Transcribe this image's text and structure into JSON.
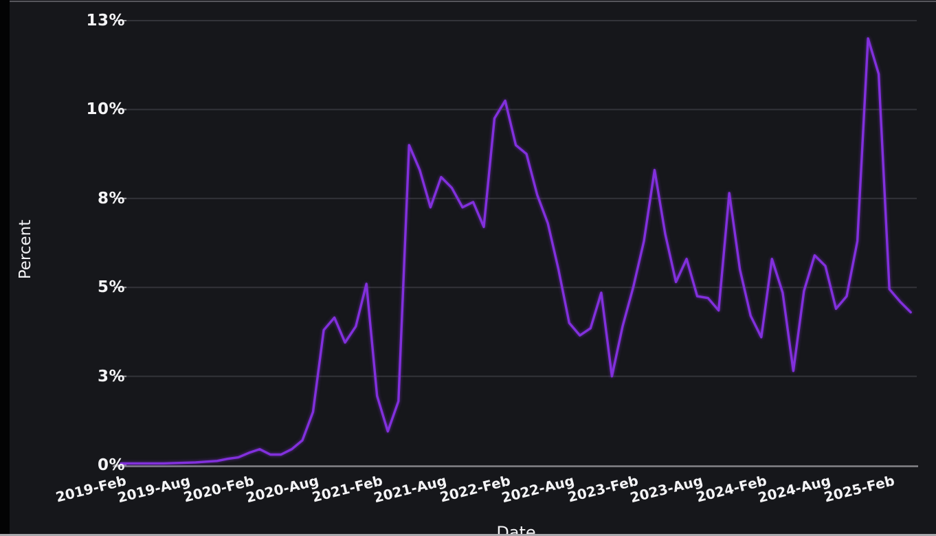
{
  "page": {
    "background": "#000000",
    "frame_background": "#16171b",
    "top_edge_color": "#56565c",
    "bottom_edge_color": "#a9a9ad"
  },
  "chart_data": {
    "type": "line",
    "title": "",
    "xlabel": "Date",
    "ylabel": "Percent",
    "x_unit": "month",
    "grid": true,
    "legend_position": "none",
    "ylim": [
      0,
      12.5
    ],
    "line_color": "#8230dd",
    "grid_color": "#33343a",
    "axis_color": "#85858a",
    "tick_stub_color": "#9b9ba0",
    "text_color": "#f4f4f6",
    "months": [
      "2019-Feb",
      "2019-Mar",
      "2019-Apr",
      "2019-May",
      "2019-Jun",
      "2019-Jul",
      "2019-Aug",
      "2019-Sep",
      "2019-Oct",
      "2019-Nov",
      "2019-Dec",
      "2020-Jan",
      "2020-Feb",
      "2020-Mar",
      "2020-Apr",
      "2020-May",
      "2020-Jun",
      "2020-Jul",
      "2020-Aug",
      "2020-Sep",
      "2020-Oct",
      "2020-Nov",
      "2020-Dec",
      "2021-Jan",
      "2021-Feb",
      "2021-Mar",
      "2021-Apr",
      "2021-May",
      "2021-Jun",
      "2021-Jul",
      "2021-Aug",
      "2021-Sep",
      "2021-Oct",
      "2021-Nov",
      "2021-Dec",
      "2022-Jan",
      "2022-Feb",
      "2022-Mar",
      "2022-Apr",
      "2022-May",
      "2022-Jun",
      "2022-Jul",
      "2022-Aug",
      "2022-Sep",
      "2022-Oct",
      "2022-Nov",
      "2022-Dec",
      "2023-Jan",
      "2023-Feb",
      "2023-Mar",
      "2023-Apr",
      "2023-May",
      "2023-Jun",
      "2023-Jul",
      "2023-Aug",
      "2023-Sep",
      "2023-Oct",
      "2023-Nov",
      "2023-Dec",
      "2024-Jan",
      "2024-Feb",
      "2024-Mar",
      "2024-Apr",
      "2024-May",
      "2024-Jun",
      "2024-Jul",
      "2024-Aug",
      "2024-Sep",
      "2024-Oct",
      "2024-Nov",
      "2024-Dec",
      "2025-Jan",
      "2025-Feb",
      "2025-Mar",
      "2025-Apr"
    ],
    "values": [
      0.05,
      0.05,
      0.05,
      0.05,
      0.05,
      0.06,
      0.07,
      0.08,
      0.1,
      0.12,
      0.18,
      0.22,
      0.35,
      0.45,
      0.3,
      0.3,
      0.45,
      0.7,
      1.5,
      3.8,
      4.15,
      3.45,
      3.9,
      5.1,
      1.95,
      0.95,
      1.8,
      9.0,
      8.3,
      7.25,
      8.1,
      7.8,
      7.25,
      7.4,
      6.7,
      9.75,
      10.25,
      9.0,
      8.75,
      7.6,
      6.8,
      5.5,
      4.0,
      3.65,
      3.85,
      4.85,
      2.5,
      3.9,
      5.0,
      6.3,
      8.3,
      6.5,
      5.15,
      5.8,
      4.75,
      4.7,
      4.35,
      7.65,
      5.5,
      4.2,
      3.6,
      5.8,
      4.85,
      2.65,
      4.9,
      5.9,
      5.6,
      4.4,
      4.75,
      6.3,
      12.0,
      11.0,
      4.95,
      4.6,
      4.3
    ],
    "x_tick_months": [
      0,
      6,
      12,
      18,
      24,
      30,
      36,
      42,
      48,
      54,
      60,
      66,
      72
    ],
    "x_tick_labels": [
      "2019-Feb",
      "2019-Aug",
      "2020-Feb",
      "2020-Aug",
      "2021-Feb",
      "2021-Aug",
      "2022-Feb",
      "2022-Aug",
      "2023-Feb",
      "2023-Aug",
      "2024-Feb",
      "2024-Aug",
      "2025-Feb"
    ],
    "y_ticks": [
      {
        "value": 0,
        "label": "0%"
      },
      {
        "value": 2.5,
        "label": "3%"
      },
      {
        "value": 5,
        "label": "5%"
      },
      {
        "value": 7.5,
        "label": "8%"
      },
      {
        "value": 10,
        "label": "10%"
      },
      {
        "value": 12.5,
        "label": "13%"
      }
    ]
  }
}
